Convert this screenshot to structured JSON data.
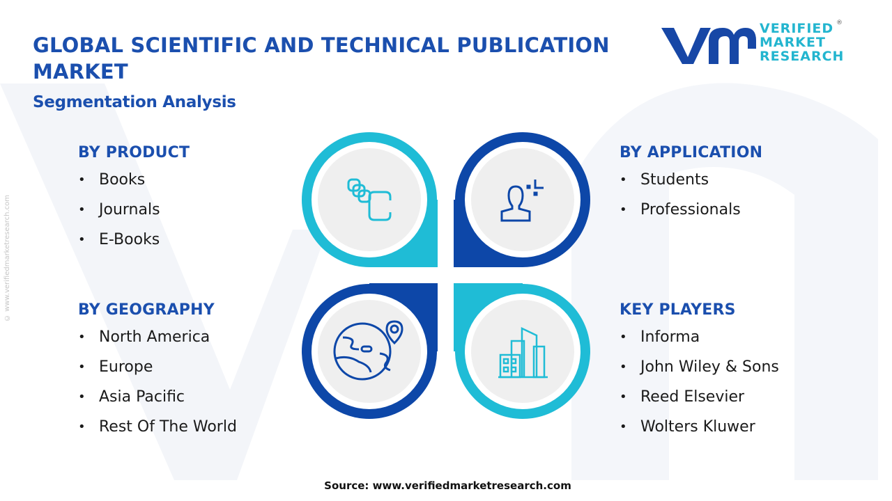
{
  "header": {
    "title": "GLOBAL SCIENTIFIC AND TECHNICAL PUBLICATION MARKET",
    "subtitle": "Segmentation Analysis"
  },
  "logo": {
    "line1": "VERIFIED",
    "line2": "MARKET",
    "line3": "RESEARCH",
    "registered": "®",
    "mark": "vmr"
  },
  "colors": {
    "primary": "#1b4fae",
    "accent": "#1fbcd6",
    "dark": "#0d47a8"
  },
  "segments": [
    {
      "heading": "BY PRODUCT",
      "icon": "cards-stack-icon",
      "items": [
        "Books",
        "Journals",
        "E-Books"
      ]
    },
    {
      "heading": "BY APPLICATION",
      "icon": "user-profile-icon",
      "items": [
        "Students",
        "Professionals"
      ]
    },
    {
      "heading": "BY GEOGRAPHY",
      "icon": "globe-location-icon",
      "items": [
        "North America",
        "Europe",
        "Asia Pacific",
        "Rest Of The World"
      ]
    },
    {
      "heading": "KEY PLAYERS",
      "icon": "buildings-icon",
      "items": [
        "Informa",
        "John Wiley & Sons",
        "Reed Elsevier",
        "Wolters Kluwer"
      ]
    }
  ],
  "side_text": "© www.verifiedmarketresearch.com",
  "source": "Source: www.verifiedmarketresearch.com"
}
